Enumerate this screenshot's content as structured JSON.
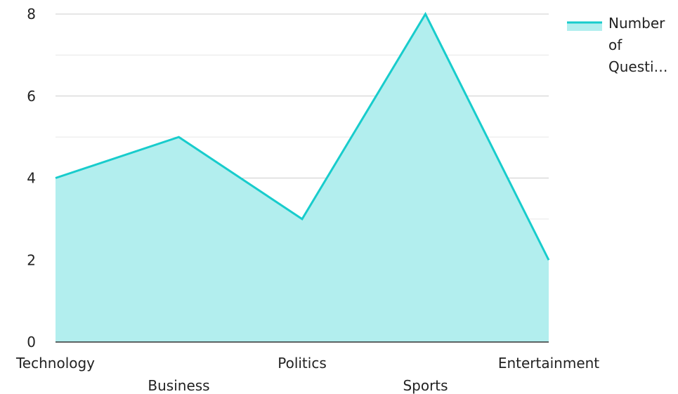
{
  "chart_data": {
    "type": "area",
    "categories": [
      "Technology",
      "Business",
      "Politics",
      "Sports",
      "Entertainment"
    ],
    "series": [
      {
        "name": "Number of Questi…",
        "values": [
          4,
          5,
          3,
          8,
          2
        ],
        "color": "#18CCCC",
        "fill": "#B2EEEE"
      }
    ],
    "ylim": [
      0,
      8
    ],
    "yticks": [
      0,
      2,
      4,
      6,
      8
    ],
    "grid": true,
    "legend_position": "top-right",
    "legend_lines": [
      "Number",
      "of",
      "Questi…"
    ],
    "title": "",
    "xlabel": "",
    "ylabel": ""
  }
}
